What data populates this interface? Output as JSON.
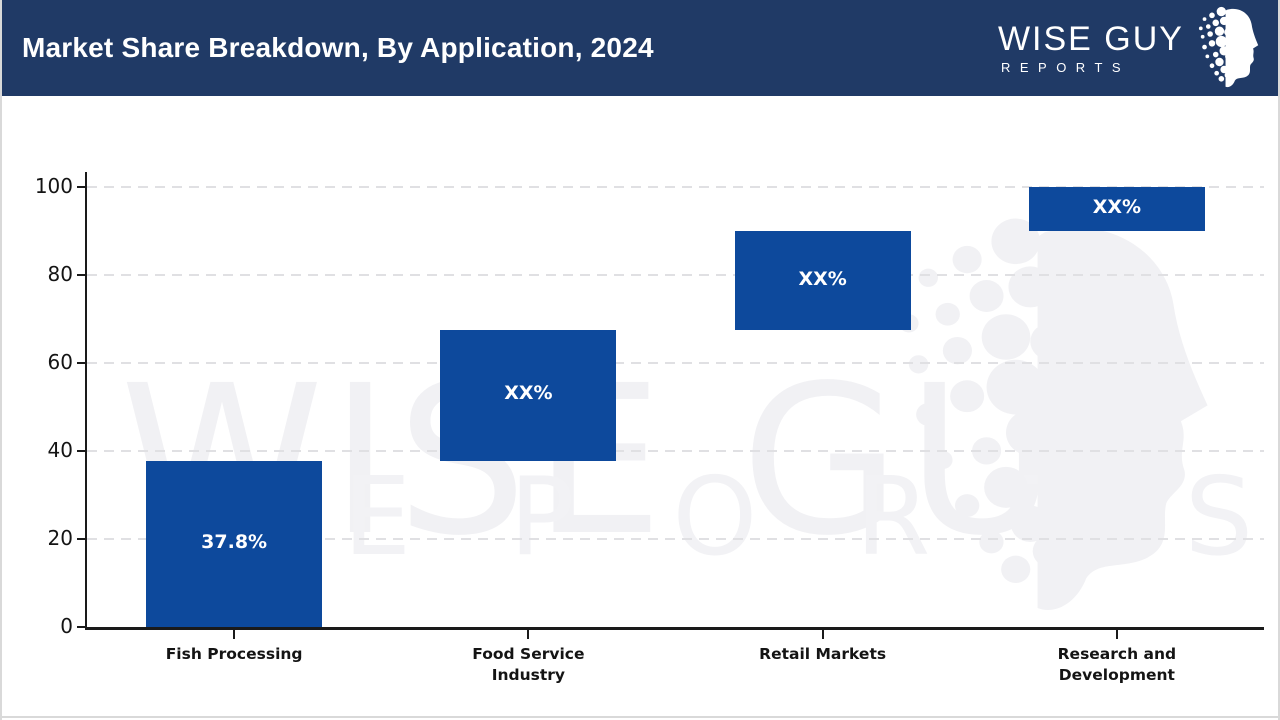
{
  "header": {
    "title": "Market Share Breakdown, By Application, 2024",
    "bg_color": "#203a66",
    "logo": {
      "line1": "WISE GUY",
      "line2": "REPORTS"
    }
  },
  "watermark": {
    "line1": "WISE GUY",
    "line2": "REPORTS"
  },
  "chart_data": {
    "type": "bar",
    "variant": "waterfall-breakdown",
    "title": "Market Share Breakdown, By Application, 2024",
    "categories": [
      [
        "Fish Processing"
      ],
      [
        "Food Service",
        "Industry"
      ],
      [
        "Retail Markets"
      ],
      [
        "Research and",
        "Development"
      ]
    ],
    "segments": [
      {
        "category": "Fish Processing",
        "label": "37.8%",
        "start": 0,
        "end": 37.8
      },
      {
        "category": "Food Service Industry",
        "label": "XX%",
        "start": 37.8,
        "end": 67.5
      },
      {
        "category": "Retail Markets",
        "label": "XX%",
        "start": 67.5,
        "end": 90
      },
      {
        "category": "Research and Development",
        "label": "XX%",
        "start": 90,
        "end": 100
      }
    ],
    "bar_color": "#0d499c",
    "bar_label_color": "#ffffff",
    "yticks": [
      0,
      20,
      40,
      60,
      80,
      100
    ],
    "ylim": [
      0,
      105
    ],
    "xlabel": "",
    "ylabel": "",
    "grid": {
      "show": true,
      "style": "dashed",
      "color": "#e0e0e3",
      "axis": "y"
    },
    "legend": "none",
    "axis_color": "#1a1a1a"
  }
}
